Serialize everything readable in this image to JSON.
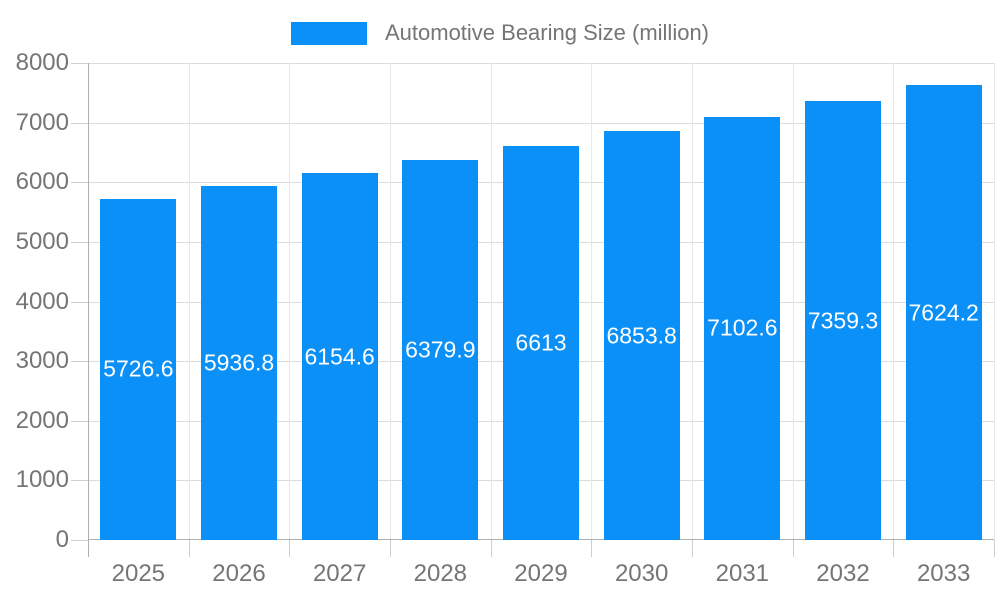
{
  "legend": {
    "label": "Automotive Bearing Size (million)",
    "swatch_color": "#0B90F8"
  },
  "chart_data": {
    "type": "bar",
    "title": "Automotive Bearing Size (million)",
    "xlabel": "",
    "ylabel": "",
    "categories": [
      "2025",
      "2026",
      "2027",
      "2028",
      "2029",
      "2030",
      "2031",
      "2032",
      "2033"
    ],
    "values": [
      5726.6,
      5936.8,
      6154.6,
      6379.9,
      6613,
      6853.8,
      7102.6,
      7359.3,
      7624.2
    ],
    "value_labels": [
      "5726.6",
      "5936.8",
      "6154.6",
      "6379.9",
      "6613",
      "6853.8",
      "7102.6",
      "7359.3",
      "7624.2"
    ],
    "ylim": [
      0,
      8000
    ],
    "yticks": [
      0,
      1000,
      2000,
      3000,
      4000,
      5000,
      6000,
      7000,
      8000
    ],
    "ytick_labels": [
      "0",
      "1000",
      "2000",
      "3000",
      "4000",
      "5000",
      "6000",
      "7000",
      "8000"
    ],
    "grid": true,
    "legend_position": "top-center",
    "bar_color": "#0B90F8",
    "value_label_color": "#ffffff",
    "axis_text_color": "#757575"
  }
}
